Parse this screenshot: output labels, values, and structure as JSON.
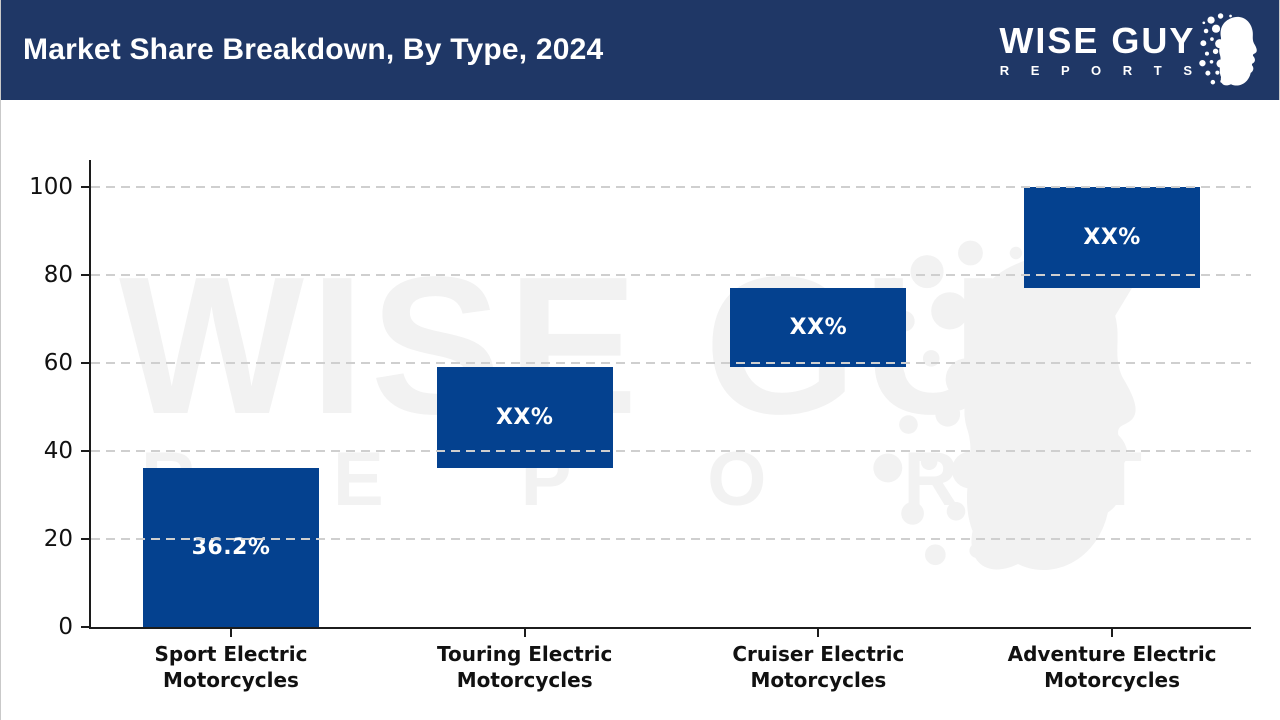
{
  "header": {
    "title": "Market Share Breakdown, By Type, 2024",
    "logo": {
      "line1": "WISE GUY",
      "line2": "REPORTS"
    }
  },
  "watermark": {
    "line1": "WISE GUY",
    "line2": "REPORTS"
  },
  "colors": {
    "header_bg": "#1f3766",
    "bar": "#04418f",
    "grid": "#cfcfcf",
    "watermark": "#f2f2f2",
    "axis": "#1c1c1c"
  },
  "chart_data": {
    "type": "waterfall",
    "title": "Market Share Breakdown, By Type, 2024",
    "categories": [
      "Sport Electric\nMotorcycles",
      "Touring Electric\nMotorcycles",
      "Cruiser Electric\nMotorcycles",
      "Adventure Electric\nMotorcycles"
    ],
    "segments": [
      {
        "category": "Sport Electric Motorcycles",
        "start": 0,
        "end": 36.2,
        "label": "36.2%"
      },
      {
        "category": "Touring Electric Motorcycles",
        "start": 36.2,
        "end": 59,
        "label": "XX%"
      },
      {
        "category": "Cruiser Electric Motorcycles",
        "start": 59,
        "end": 77,
        "label": "XX%"
      },
      {
        "category": "Adventure Electric Motorcycles",
        "start": 77,
        "end": 100,
        "label": "XX%"
      }
    ],
    "xlabel": "",
    "ylabel": "",
    "ylim": [
      0,
      100
    ],
    "yticks": [
      0,
      20,
      40,
      60,
      80,
      100
    ],
    "grid": "horizontal-dashed",
    "legend": "none",
    "bar_color": "#04418f",
    "value_label_color": "#ffffff"
  }
}
